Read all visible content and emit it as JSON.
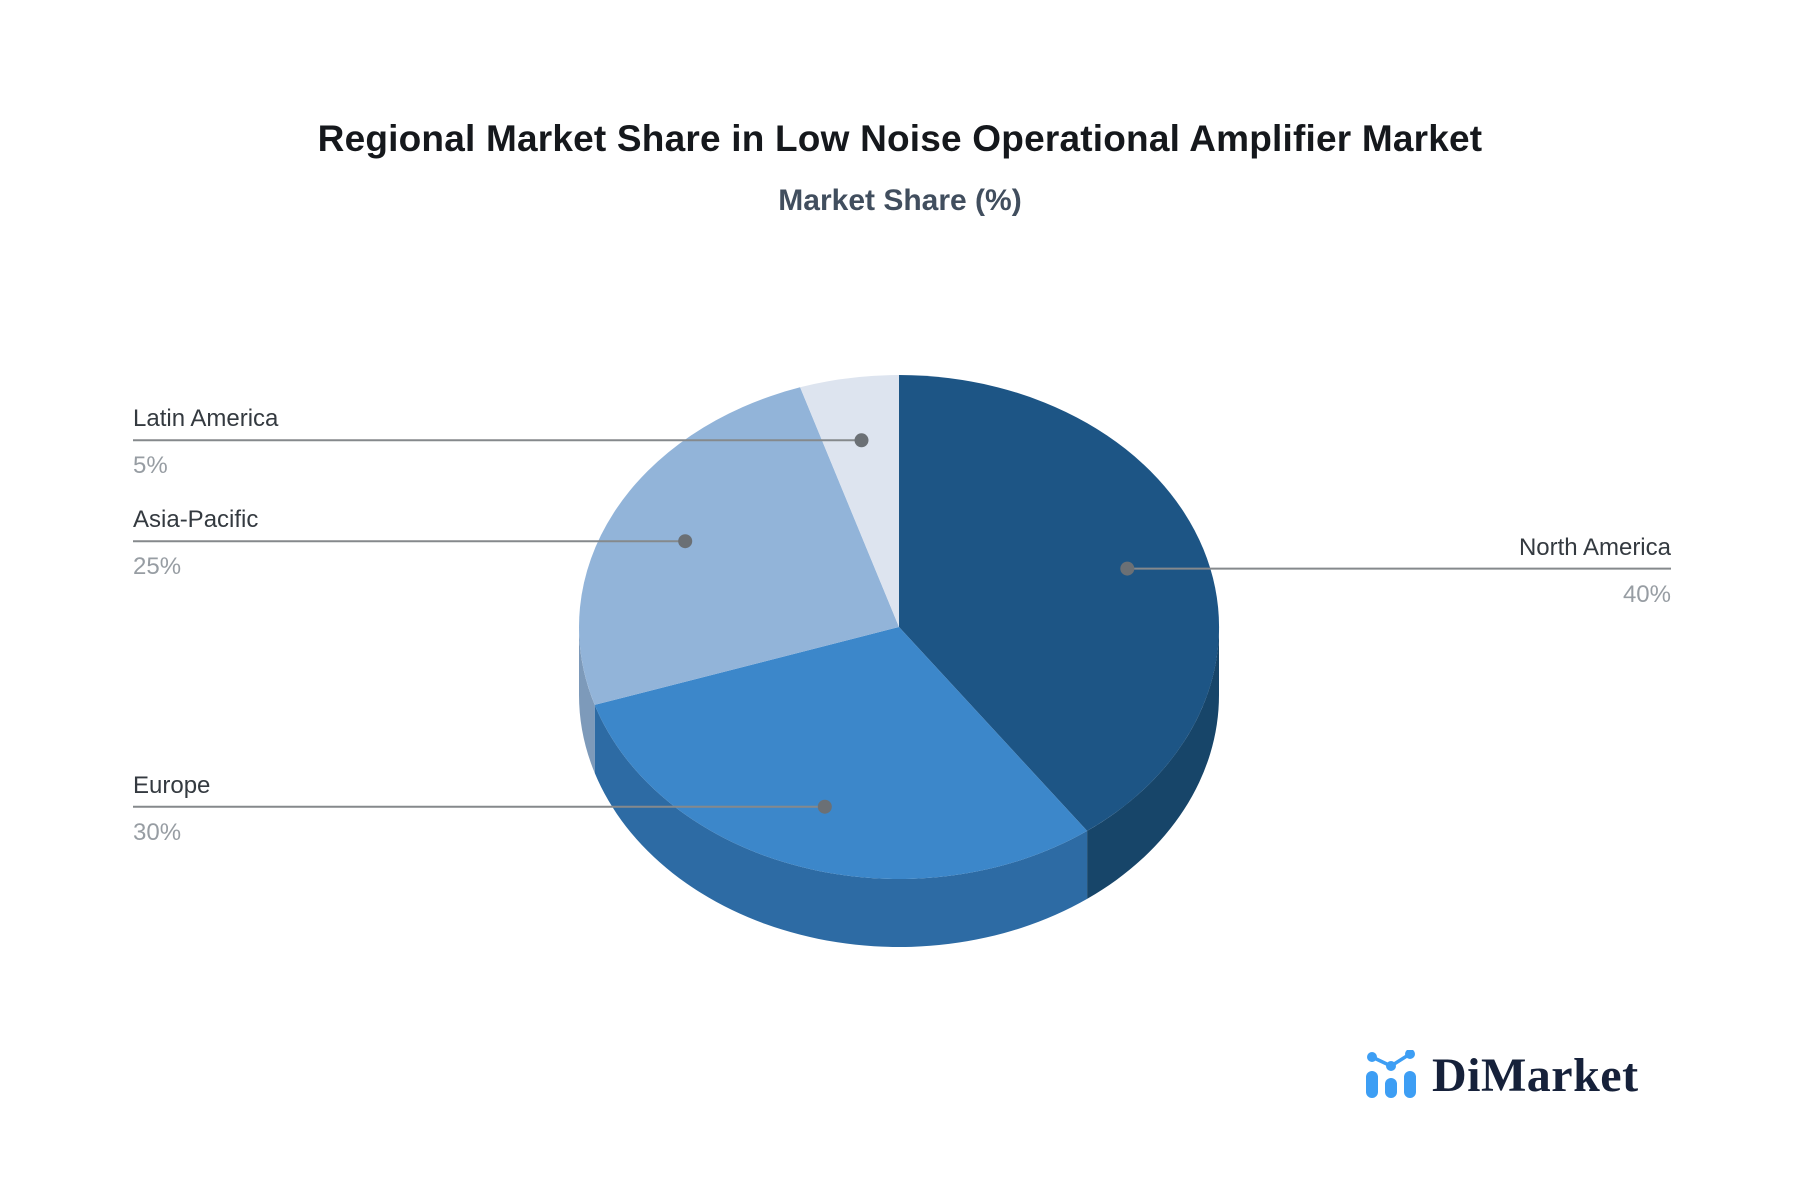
{
  "header": {
    "title": "Regional Market Share in Low Noise Operational Amplifier Market",
    "subtitle": "Market Share (%)",
    "title_color": "#15181c",
    "subtitle_color": "#414e5e"
  },
  "chart_data": {
    "type": "pie",
    "style": "3d",
    "title": "Regional Market Share in Low Noise Operational Amplifier Market",
    "subtitle": "Market Share (%)",
    "unit": "%",
    "start_angle_deg": 0,
    "direction": "clockwise",
    "legend_position": "callout-labels",
    "slices": [
      {
        "label": "North America",
        "value": 40,
        "value_label": "40%",
        "color": "#1d5585",
        "side_color": "#174569",
        "label_side": "right"
      },
      {
        "label": "Europe",
        "value": 30,
        "value_label": "30%",
        "color": "#3c87ca",
        "side_color": "#2d6ba4",
        "label_side": "left"
      },
      {
        "label": "Asia-Pacific",
        "value": 25,
        "value_label": "25%",
        "color": "#92b4d9",
        "side_color": "#7d9aba",
        "label_side": "left"
      },
      {
        "label": "Latin America",
        "value": 5,
        "value_label": "5%",
        "color": "#dde4ef",
        "side_color": "#c4cedc",
        "label_side": "left"
      }
    ],
    "leader_line_color": "#85898c",
    "leader_dot_color": "#6b7075",
    "label_color": "#343a40",
    "value_color": "#979da3"
  },
  "brand": {
    "name": "DiMarket",
    "icon": "bar-line-chart-icon",
    "text_color": "#16213a",
    "icon_color": "#3d9ef4"
  }
}
